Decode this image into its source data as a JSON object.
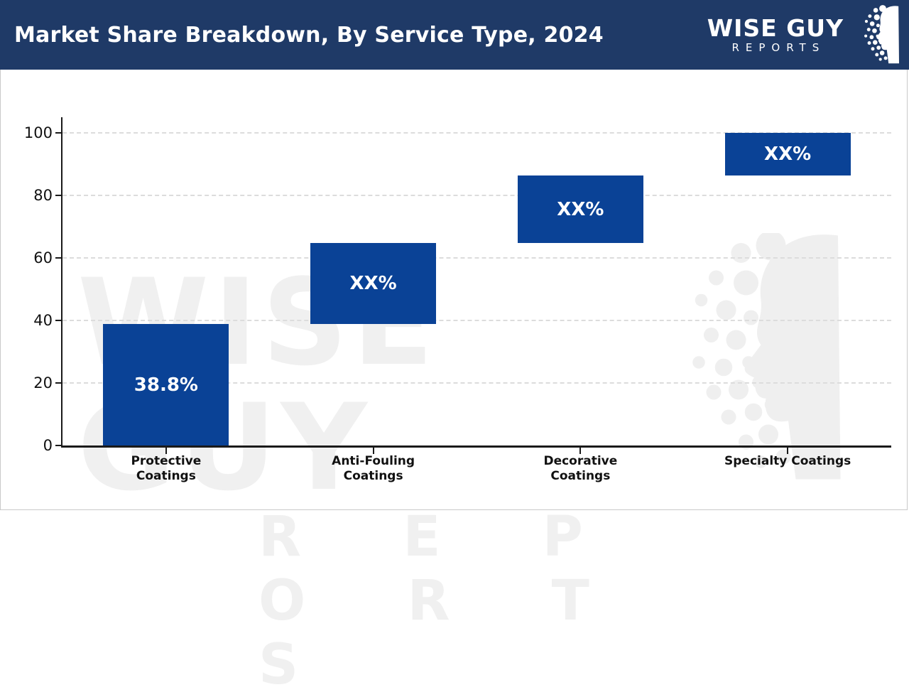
{
  "header": {
    "title": "Market Share Breakdown, By Service Type, 2024",
    "bg_color": "#1f3a67",
    "brand": {
      "name_top": "WISE GUY",
      "name_bottom": "REPORTS"
    }
  },
  "watermark": {
    "line1": "WISE GUY",
    "line2": "R E P O R T S"
  },
  "chart_data": {
    "type": "bar",
    "subtype": "waterfall",
    "title": "Market Share Breakdown, By Service Type, 2024",
    "categories": [
      {
        "name": "Protective Coatings",
        "lines": [
          "Protective",
          "Coatings"
        ]
      },
      {
        "name": "Anti-Fouling Coatings",
        "lines": [
          "Anti-Fouling",
          "Coatings"
        ]
      },
      {
        "name": "Decorative Coatings",
        "lines": [
          "Decorative",
          "Coatings"
        ]
      },
      {
        "name": "Specialty Coatings",
        "lines": [
          "Specialty Coatings"
        ]
      }
    ],
    "segments": [
      {
        "category": "Protective Coatings",
        "start": 0,
        "end": 38.8,
        "label": "38.8%"
      },
      {
        "category": "Anti-Fouling Coatings",
        "start": 38.8,
        "end": 64.7,
        "label": "XX%"
      },
      {
        "category": "Decorative Coatings",
        "start": 64.7,
        "end": 86.4,
        "label": "XX%"
      },
      {
        "category": "Specialty Coatings",
        "start": 86.4,
        "end": 100,
        "label": "XX%"
      }
    ],
    "y_ticks": [
      0,
      20,
      40,
      60,
      80,
      100
    ],
    "ylim": [
      0,
      105
    ],
    "xlabel": "",
    "ylabel": "",
    "grid": "horizontal dashed",
    "legend": "none",
    "bar_color": "#0a4296",
    "bar_label_color": "#ffffff"
  }
}
